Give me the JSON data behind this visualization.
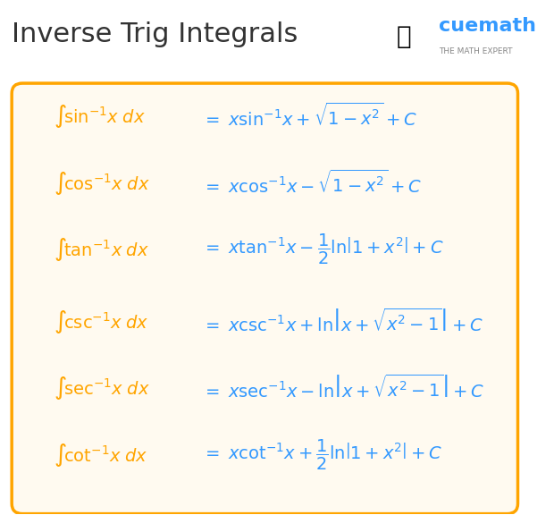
{
  "title": "Inverse Trig Integrals",
  "title_color": "#333333",
  "title_fontsize": 22,
  "bg_color": "#ffffff",
  "box_edge_color": "#FFA500",
  "box_face_color": "#FFFAF0",
  "orange_color": "#FFA500",
  "blue_color": "#3399FF",
  "formulas": [
    {
      "lhs": "\\int sin^{-1}x \\; dx",
      "rhs": "= \\; x \\sin^{-1}x + \\sqrt{1 - x^2} + C"
    },
    {
      "lhs": "\\int cos^{-1}x \\; dx",
      "rhs": "= \\; x \\cos^{-1}x - \\sqrt{1 - x^2} + C"
    },
    {
      "lhs": "\\int tan^{-1}x \\; dx",
      "rhs": "= \\; x \\tan^{-1}x - \\dfrac{1}{2} \\ln \\left|1 + x^2\\right| + C"
    },
    {
      "lhs": "\\int csc^{-1}x \\; dx",
      "rhs": "= \\; x \\csc^{-1}x + \\ln \\left|x + \\sqrt{x^2 - 1}\\right| + C"
    },
    {
      "lhs": "\\int sec^{-1}x \\; dx",
      "rhs": "= \\; x \\sec^{-1}x - \\ln \\left|x + \\sqrt{x^2 - 1}\\right| + C"
    },
    {
      "lhs": "\\int cot^{-1}x \\; dx",
      "rhs": "= \\; x \\cot^{-1}x + \\dfrac{1}{2} \\ln \\left|1 + x^2\\right| + C"
    }
  ],
  "cuemath_text": "cuemath",
  "cuemath_sub": "THE MATH EXPERT",
  "cuemath_color": "#3399FF",
  "cuemath_sub_color": "#888888"
}
